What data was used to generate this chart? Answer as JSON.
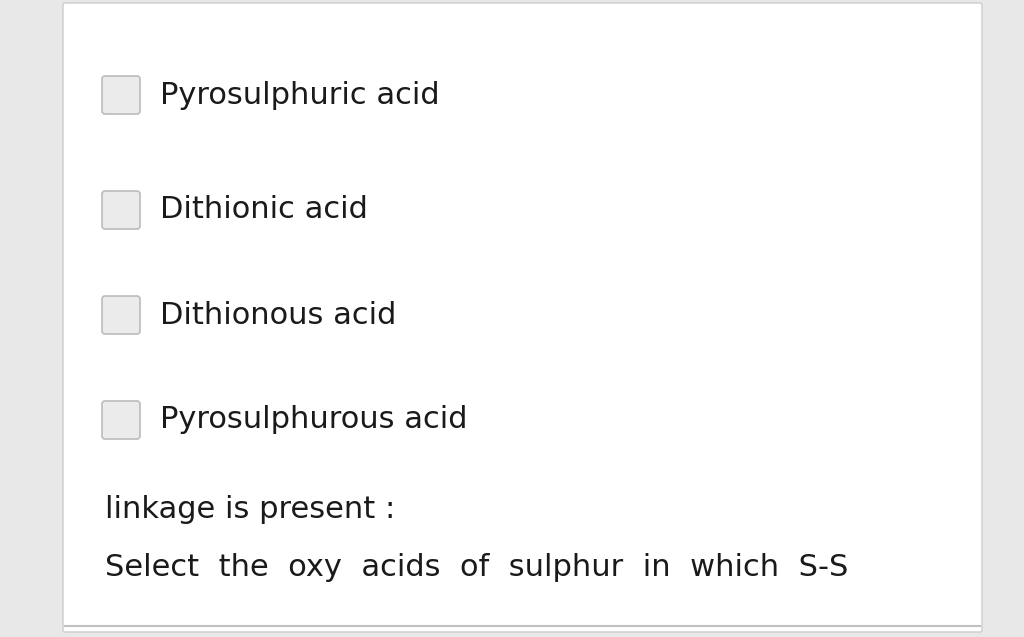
{
  "question_line1": "Select  the  oxy  acids  of  sulphur  in  which  S-S",
  "question_line2": "linkage is present :",
  "options": [
    "Pyrosulphurous acid",
    "Dithionous acid",
    "Dithionic acid",
    "Pyrosulphuric acid"
  ],
  "bg_color": "#e8e8e8",
  "panel_color": "#ffffff",
  "checkbox_bg": "#ebebeb",
  "checkbox_border": "#bbbbbb",
  "text_color": "#1a1a1a",
  "question_fontsize": 22,
  "option_fontsize": 22,
  "border_color": "#cccccc",
  "top_border_color": "#c0c0c0"
}
